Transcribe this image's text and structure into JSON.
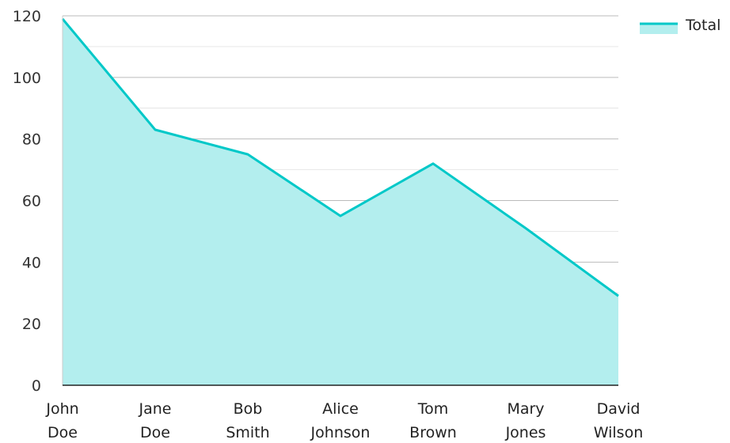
{
  "chart_data": {
    "type": "area",
    "categories": [
      [
        "John",
        "Doe"
      ],
      [
        "Jane",
        "Doe"
      ],
      [
        "Bob",
        "Smith"
      ],
      [
        "Alice",
        "Johnson"
      ],
      [
        "Tom",
        "Brown"
      ],
      [
        "Mary",
        "Jones"
      ],
      [
        "David",
        "Wilson"
      ]
    ],
    "series": [
      {
        "name": "Total",
        "values": [
          119,
          83,
          75,
          55,
          72,
          51,
          29
        ]
      }
    ],
    "ylim": [
      0,
      120
    ],
    "yticks": [
      0,
      20,
      40,
      60,
      80,
      100,
      120
    ],
    "grid": true,
    "legend_position": "top-right",
    "colors": {
      "line": "#00c8c8",
      "fill": "#b3eeee",
      "grid": "#bbbbbb",
      "axis": "#222222"
    }
  }
}
